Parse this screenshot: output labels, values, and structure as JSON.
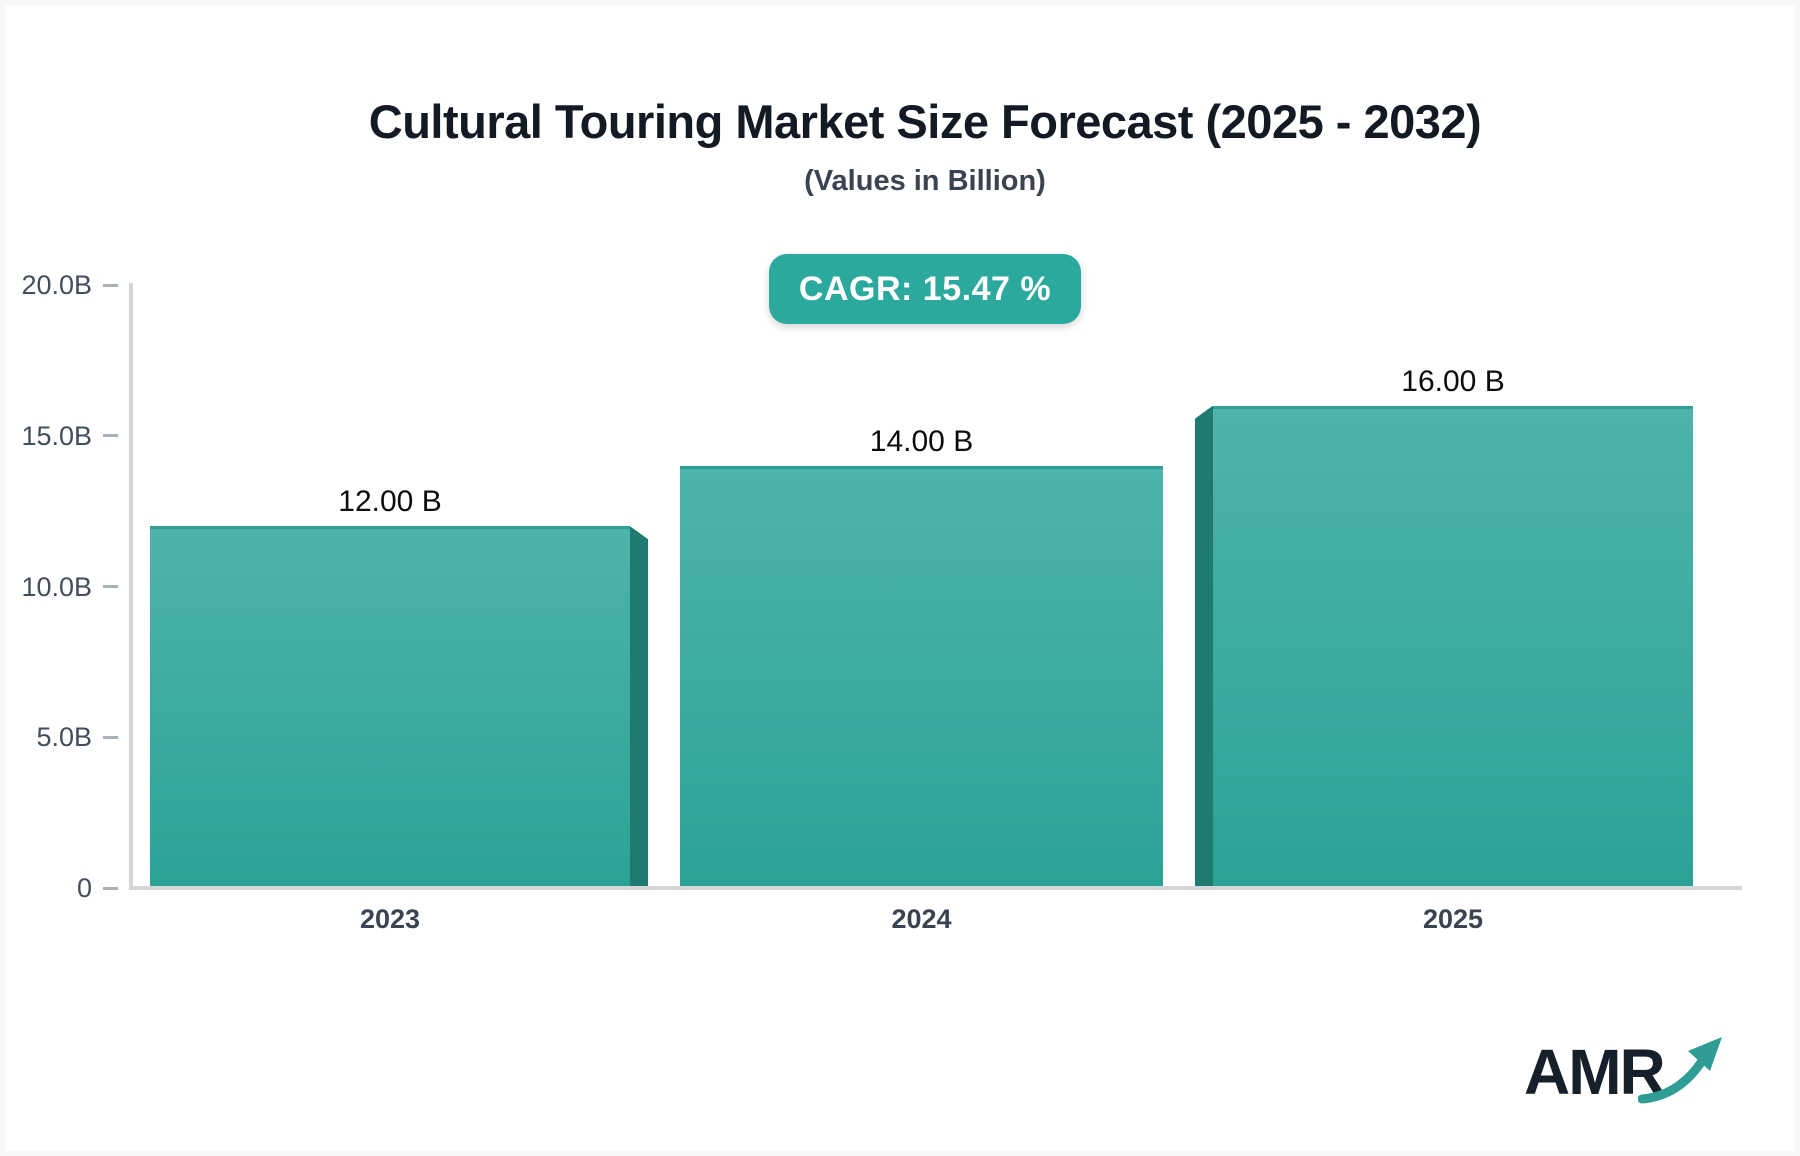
{
  "chart_data": {
    "type": "bar",
    "title": "Cultural Touring Market Size Forecast (2025 - 2032)",
    "subtitle": "(Values in Billion)",
    "cagr_badge": "CAGR: 15.47 %",
    "categories": [
      "2023",
      "2024",
      "2025"
    ],
    "values": [
      12,
      14,
      16
    ],
    "value_labels": [
      "12.00 B",
      "14.00 B",
      "16.00 B"
    ],
    "unit": "Billion",
    "ylim": [
      0,
      20
    ],
    "yticks": [
      {
        "label": "20.0B",
        "value": 20
      },
      {
        "label": "15.0B",
        "value": 15
      },
      {
        "label": "10.0B",
        "value": 10
      },
      {
        "label": "5.0B",
        "value": 5
      },
      {
        "label": "0",
        "value": 0
      }
    ],
    "gridlines": false,
    "legend": "none",
    "colors": {
      "bar_gradient_top": "#4eb3aa",
      "bar_gradient_bottom": "#2aa396",
      "bar_top_edge": "#2f9f95",
      "bar_side_face": "#1f7a70",
      "badge_background": "#2ca99d",
      "badge_text": "#ffffff",
      "axis_line": "#d3d7db",
      "tick_mark": "#a9b0b7",
      "tick_label_text": "#434d5c",
      "category_label_text": "#3a4352",
      "value_label_text": "#0c0d0e",
      "title_text": "#141a24",
      "subtitle_text": "#3b4350"
    }
  },
  "logo": {
    "text": "AMR",
    "text_color": "#15202b",
    "arrow_color": "#2f9d93"
  }
}
